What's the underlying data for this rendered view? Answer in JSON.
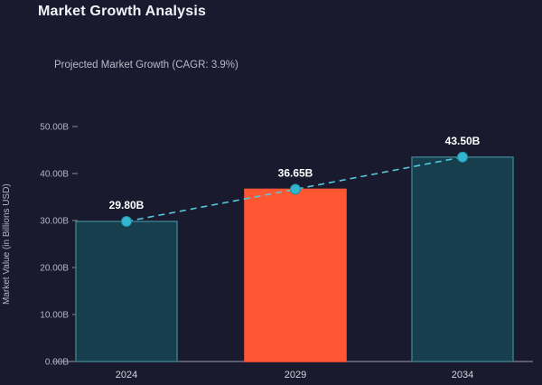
{
  "chart_data": {
    "type": "bar",
    "title": "Market Growth Analysis",
    "subtitle": "Projected Market Growth (CAGR: 3.9%)",
    "categories": [
      "2024",
      "2029",
      "2034"
    ],
    "values": [
      29.8,
      36.65,
      43.5
    ],
    "value_labels": [
      "29.80B",
      "36.65B",
      "43.50B"
    ],
    "ylabel": "Market Value (in Billions USD)",
    "xlabel": "",
    "ylim": [
      0,
      50
    ],
    "yticks": [
      0,
      10,
      20,
      30,
      40,
      50
    ],
    "ytick_labels": [
      "0.00B",
      "10.00B",
      "20.00B",
      "30.00B",
      "40.00B",
      "50.00B"
    ],
    "grid": "off",
    "legend": "none",
    "overlay": "dashed trend line with circular markers connecting bar tops",
    "bar_fills": [
      "#163e4c",
      "#ff5733",
      "#163e4c"
    ],
    "bar_strokes": [
      "#3a7a8a",
      "#ff5733",
      "#3a7a8a"
    ],
    "trend_color": "#55c8dd",
    "marker_color": "#35b6cf",
    "marker_stroke": "#1d8fa3",
    "background_color": "#1a1a2e",
    "title_color": "#f2f2f7",
    "subtitle_color": "#b9b9c6"
  }
}
